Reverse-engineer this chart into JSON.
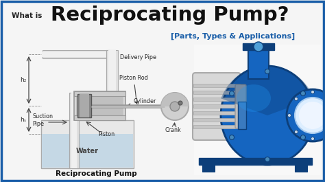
{
  "bg_color": "#f5f5f5",
  "border_color": "#1a5ea8",
  "title_small": "What is",
  "title_main": "Reciprocating Pump?",
  "subtitle": "[Parts, Types & Applications]",
  "caption": "Reciprocating Pump",
  "labels": {
    "delivery_pipe": "Delivery Pipe",
    "piston_rod": "Piston Rod",
    "cylinder": "Cylinder",
    "suction_pipe": "Suction\nPipe",
    "piston": "Piston",
    "crank": "Crank",
    "water": "Water",
    "hd": "h₂",
    "hs": "hₛ"
  },
  "pump_blue": "#1565c0",
  "pump_blue_light": "#2196f3",
  "pump_blue_dark": "#0d3f7a",
  "pump_inlet_white": "#d8eaf8",
  "motor_grey": "#d5d5d5",
  "motor_dark": "#aaaaaa",
  "pipe_color": "#c8c8c8",
  "pipe_dark": "#888888",
  "water_color": "#c5d8e5",
  "water_bg": "#e8eef2",
  "crank_color": "#c8c8c8",
  "crank_dark": "#999999"
}
